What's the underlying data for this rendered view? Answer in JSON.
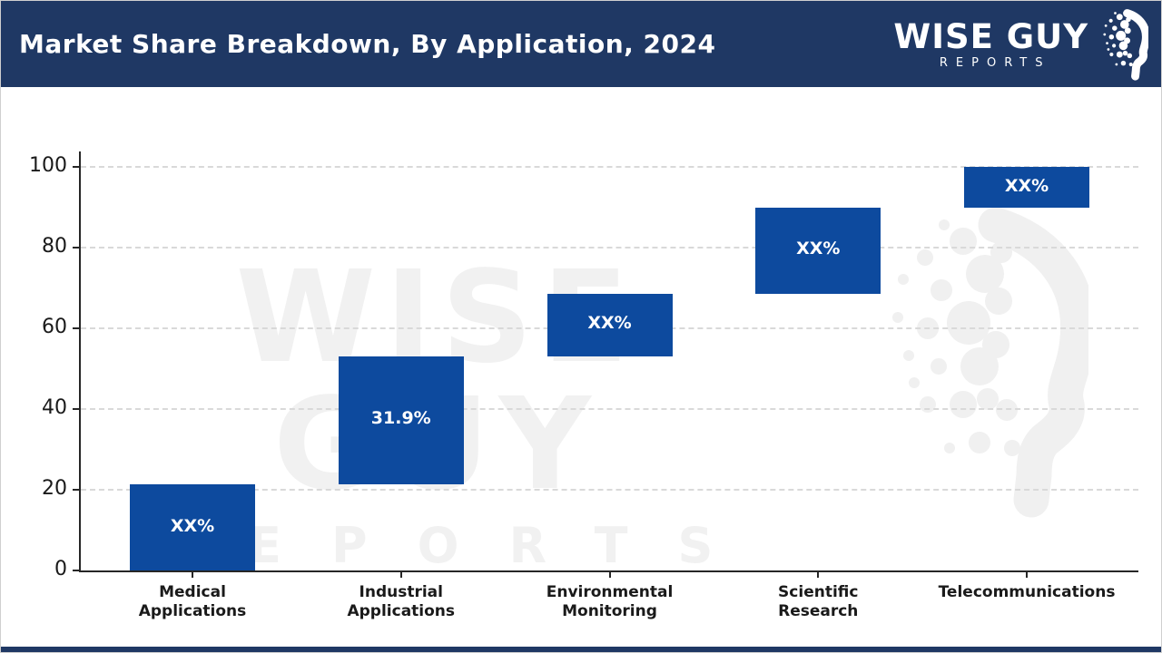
{
  "header": {
    "title": "Market Share Breakdown, By Application, 2024",
    "logo": {
      "line1": "WISE GUY",
      "line2": "REPORTS"
    }
  },
  "watermark": {
    "line1": "WISE GUY",
    "line2": "REPORTS"
  },
  "colors": {
    "header_bg": "#1f3864",
    "bar": "#0d4a9e",
    "grid": "#d9d9d9",
    "axis": "#262626",
    "text": "#1a1a1a",
    "bar_label": "#ffffff",
    "watermark": "#f1f1f1"
  },
  "chart_data": {
    "type": "bar",
    "subtype": "floating-segmented-bar (waterfall-style cumulative market share)",
    "title": "Market Share Breakdown, By Application, 2024",
    "xlabel": "",
    "ylabel": "",
    "ylim": [
      0,
      105
    ],
    "yticks": [
      0,
      20,
      40,
      60,
      80,
      100
    ],
    "grid": "horizontal dashed",
    "legend": "none",
    "bar_color": "#0d4a9e",
    "bars": [
      {
        "category": "Medical Applications",
        "lines": [
          "Medical",
          "Applications"
        ],
        "start": 0,
        "end": 21.3,
        "height": 21.3,
        "label": "XX%"
      },
      {
        "category": "Industrial Applications",
        "lines": [
          "Industrial",
          "Applications"
        ],
        "start": 21.3,
        "end": 53.2,
        "height": 31.9,
        "label": "31.9%"
      },
      {
        "category": "Environmental Monitoring",
        "lines": [
          "Environmental",
          "Monitoring"
        ],
        "start": 53.2,
        "end": 68.7,
        "height": 15.5,
        "label": "XX%"
      },
      {
        "category": "Scientific Research",
        "lines": [
          "Scientific",
          "Research"
        ],
        "start": 68.7,
        "end": 89.9,
        "height": 21.2,
        "label": "XX%"
      },
      {
        "category": "Telecommunications",
        "lines": [
          "Telecommunications"
        ],
        "start": 89.9,
        "end": 100,
        "height": 10.1,
        "label": "XX%"
      }
    ]
  }
}
